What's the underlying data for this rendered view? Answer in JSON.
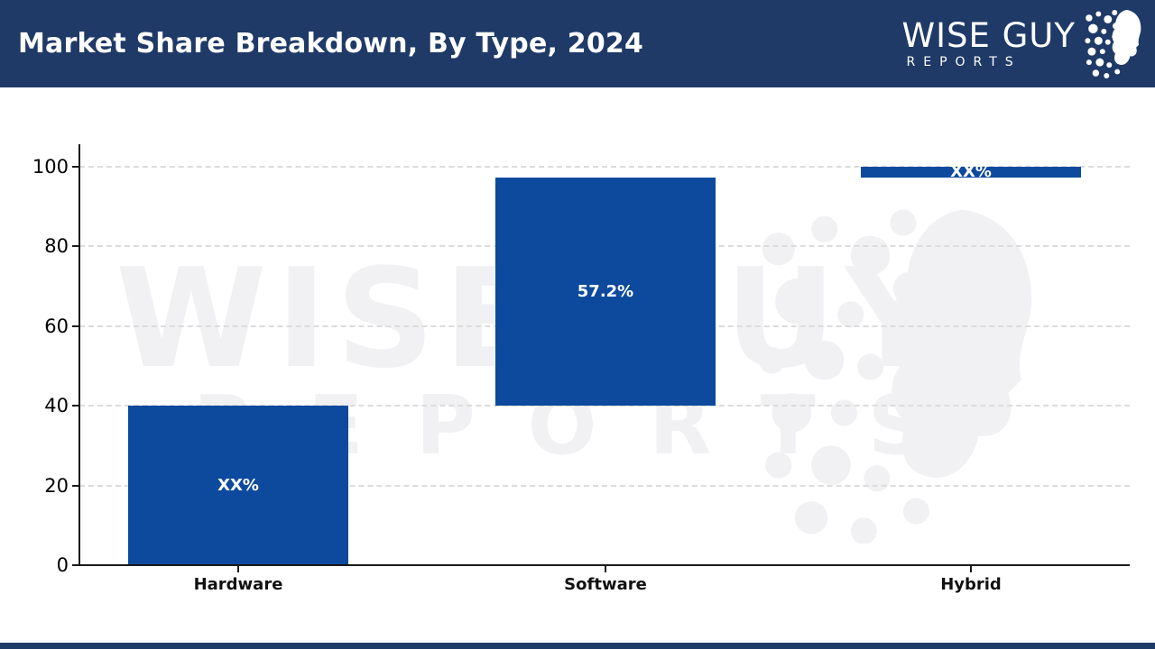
{
  "header": {
    "title": "Market Share Breakdown, By Type, 2024",
    "brand": {
      "line1": "WISE GUY",
      "line2": "REPORTS"
    },
    "bg_color": "#1f3a67"
  },
  "watermark": {
    "line1": "WISE GUY",
    "line2": "REPORTS"
  },
  "chart_data": {
    "type": "bar",
    "subtype": "stacked-waterfall-breakdown",
    "title": "Market Share Breakdown, By Type, 2024",
    "categories": [
      "Hardware",
      "Software",
      "Hybrid"
    ],
    "segments": [
      {
        "category": "Hardware",
        "start": 0,
        "end": 40,
        "label": "XX%"
      },
      {
        "category": "Software",
        "start": 40,
        "end": 97.2,
        "label": "57.2%"
      },
      {
        "category": "Hybrid",
        "start": 97.2,
        "end": 100,
        "label": "XX%"
      }
    ],
    "yticks": [
      0,
      20,
      40,
      60,
      80,
      100
    ],
    "ylim": [
      0,
      100
    ],
    "bar_color": "#0d4a9e",
    "grid": "horizontal-dashed",
    "legend": "none",
    "xlabel": "",
    "ylabel": ""
  },
  "footer": {
    "bar_color": "#1f3a67"
  }
}
